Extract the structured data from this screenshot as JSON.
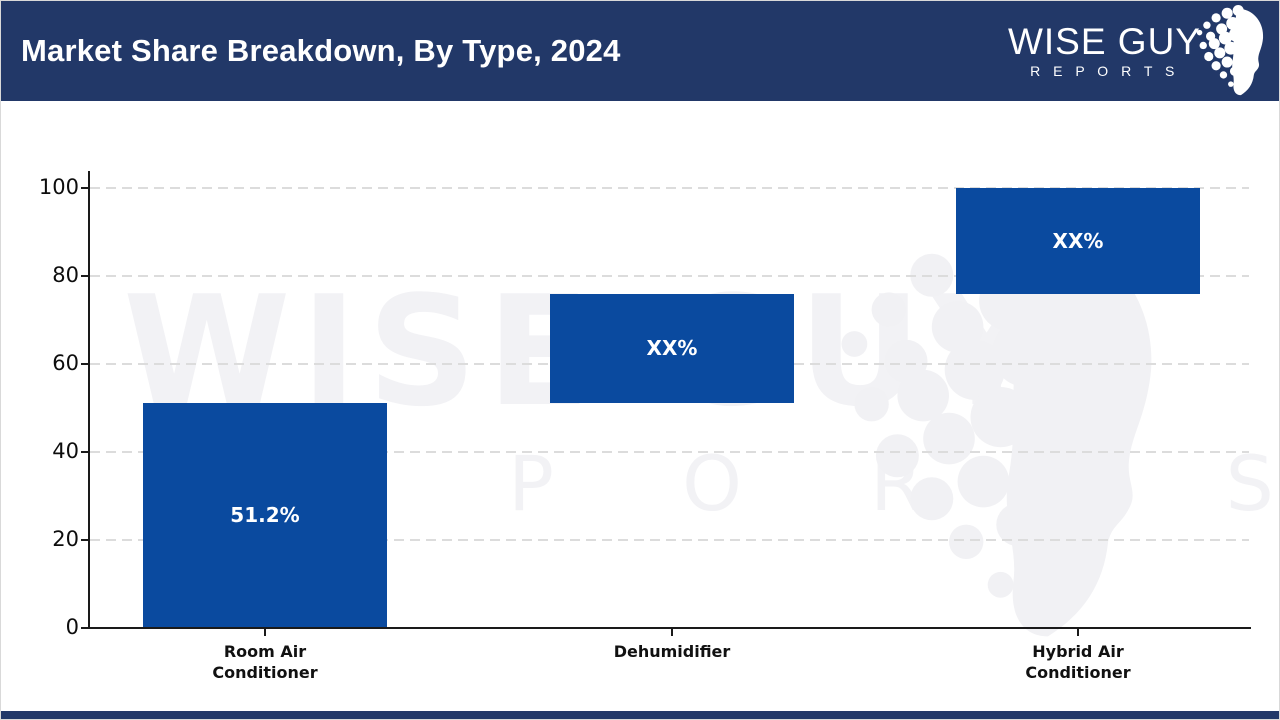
{
  "header": {
    "title": "Market Share Breakdown, By Type, 2024",
    "logo": {
      "line1": "WISE GUY",
      "line2": "R E P O R T S"
    }
  },
  "watermark": {
    "line1": "WISE GUY",
    "line2": "R E P O R T S"
  },
  "colors": {
    "header_bg": "#223868",
    "bar": "#0a4a9f",
    "bar_label": "#ffffff",
    "grid": "#dcdcdc",
    "axis": "#1a1a1a",
    "watermark": "#f2f2f5"
  },
  "chart_data": {
    "type": "bar",
    "subtype": "floating-stacked-percent-breakdown",
    "title": "Market Share Breakdown, By Type, 2024",
    "ylim": [
      0,
      100
    ],
    "yticks": [
      0,
      20,
      40,
      60,
      80,
      100
    ],
    "grid": "horizontal-dashed",
    "legend": "none",
    "categories": [
      "Room Air Conditioner",
      "Dehumidifier",
      "Hybrid Air Conditioner"
    ],
    "category_label_lines": [
      [
        "Room Air",
        "Conditioner"
      ],
      [
        "Dehumidifier"
      ],
      [
        "Hybrid Air",
        "Conditioner"
      ]
    ],
    "bars": [
      {
        "category": "Room Air Conditioner",
        "start": 0,
        "end": 51.2,
        "label": "51.2%"
      },
      {
        "category": "Dehumidifier",
        "start": 51.2,
        "end": 75.9,
        "label": "XX%"
      },
      {
        "category": "Hybrid Air Conditioner",
        "start": 75.9,
        "end": 100.0,
        "label": "XX%"
      }
    ]
  }
}
